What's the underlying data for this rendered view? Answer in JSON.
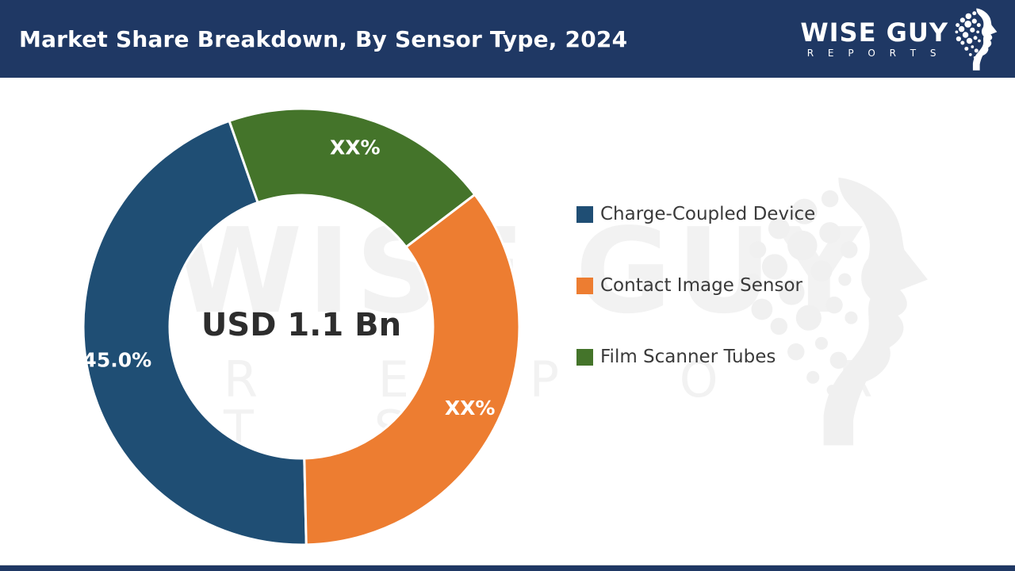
{
  "header": {
    "title": "Market Share Breakdown, By Sensor Type, 2024",
    "logo": {
      "line1": "WISE GUY",
      "line2": "R E P O R T S"
    }
  },
  "chart_data": {
    "type": "pie",
    "subtype": "donut",
    "title": "Market Share Breakdown, By Sensor Type, 2024",
    "center_label": "USD 1.1 Bn",
    "units": "percent of market share",
    "start_angle_deg": 109.3,
    "direction": "counterclockwise",
    "legend_position": "right",
    "slices": [
      {
        "label": "Charge-Coupled Device",
        "value_pct": 45.0,
        "display_label": "45.0%",
        "color": "#1f4e74"
      },
      {
        "label": "Contact Image Sensor",
        "value_pct": 35.0,
        "display_label": "XX%",
        "color": "#ed7d31"
      },
      {
        "label": "Film Scanner Tubes",
        "value_pct": 20.0,
        "display_label": "XX%",
        "color": "#44742a"
      }
    ]
  },
  "watermark": {
    "line1": "WISE GUY",
    "line2": "R E P O R T S"
  },
  "colors": {
    "header_bg": "#1f3864",
    "footer_bg": "#1f3864",
    "legend_text": "#3a3a3a",
    "center_text": "#2d2d2d",
    "watermark": "#f2f2f2"
  }
}
